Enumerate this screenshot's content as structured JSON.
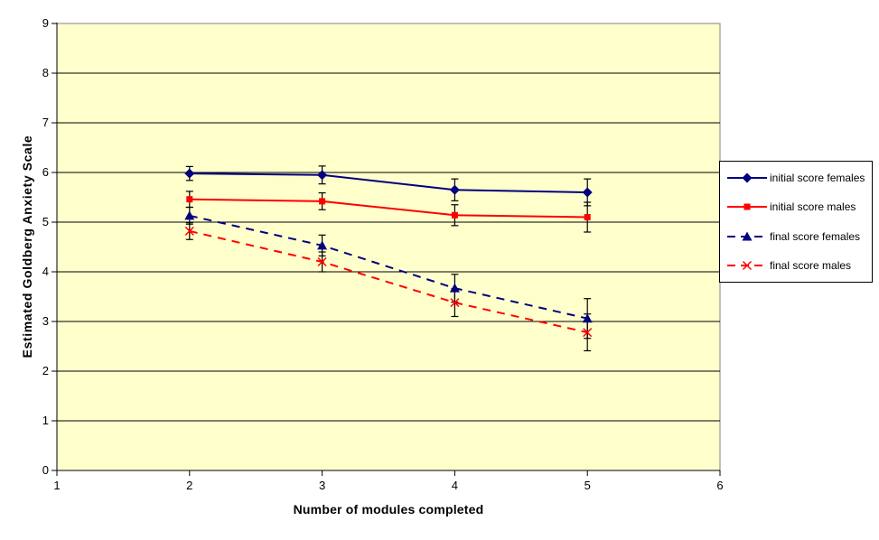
{
  "chart_data": {
    "type": "line",
    "title": "",
    "xlabel": "Number of modules completed",
    "ylabel": "Estimated Goldberg Anxiety Scale",
    "x": [
      2,
      3,
      4,
      5
    ],
    "xlim": [
      1,
      6
    ],
    "ylim": [
      0,
      9
    ],
    "x_ticks": [
      1,
      2,
      3,
      4,
      5,
      6
    ],
    "y_ticks": [
      0,
      1,
      2,
      3,
      4,
      5,
      6,
      7,
      8,
      9
    ],
    "grid": "horizontal",
    "legend_position": "right",
    "plot_bg_color": "#FFFFCC",
    "outer_bg_color": "#FFFFFF",
    "grid_color": "#000000",
    "axis_color": "#000000",
    "plot_border_color": "#848284",
    "error_bar_color": "#000000",
    "series": [
      {
        "name": "initial score females",
        "color": "#000080",
        "line_style": "solid",
        "marker": "diamond",
        "values": [
          5.98,
          5.95,
          5.65,
          5.6
        ],
        "error": [
          0.14,
          0.18,
          0.22,
          0.27
        ]
      },
      {
        "name": "initial score males",
        "color": "#FF0000",
        "line_style": "solid",
        "marker": "square",
        "values": [
          5.46,
          5.42,
          5.14,
          5.1
        ],
        "error": [
          0.16,
          0.17,
          0.21,
          0.3
        ]
      },
      {
        "name": "final score females",
        "color": "#000080",
        "line_style": "dashed",
        "marker": "triangle",
        "values": [
          5.13,
          4.53,
          3.67,
          3.06
        ],
        "error": [
          0.17,
          0.21,
          0.28,
          0.4
        ]
      },
      {
        "name": "final score males",
        "color": "#FF0000",
        "line_style": "dashed",
        "marker": "x",
        "values": [
          4.82,
          4.2,
          3.38,
          2.78
        ],
        "error": [
          0.17,
          0.2,
          0.28,
          0.37
        ]
      }
    ]
  }
}
